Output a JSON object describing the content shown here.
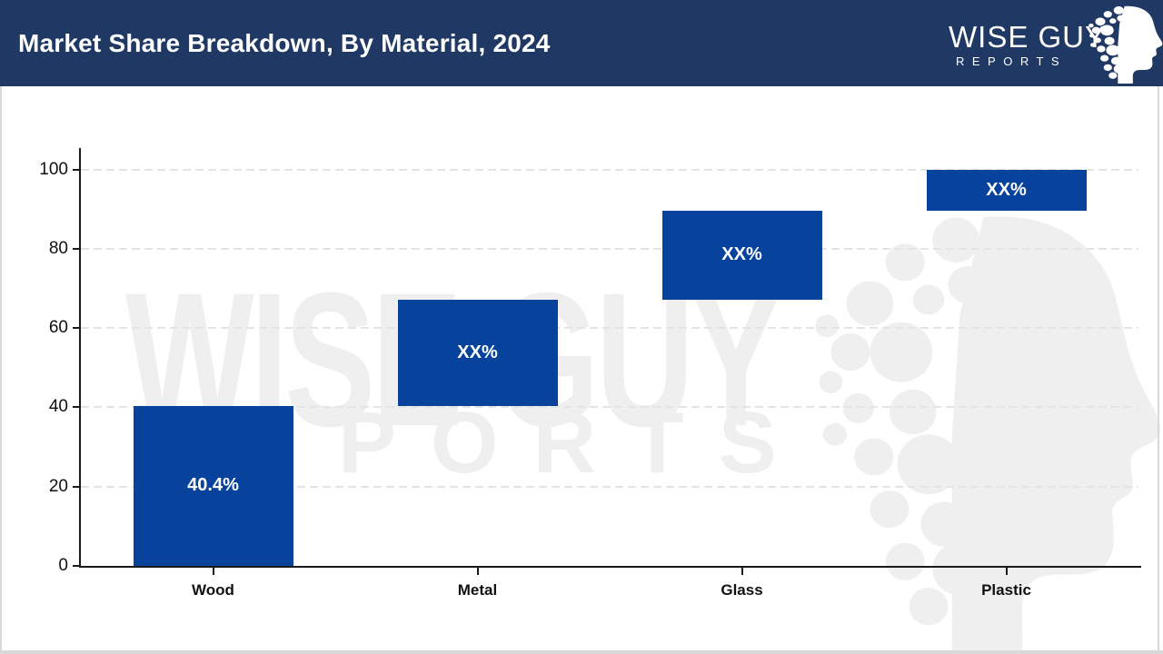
{
  "header": {
    "title": "Market Share Breakdown, By Material, 2024"
  },
  "logo": {
    "line1": "WISE GUY",
    "line2": "REPORTS"
  },
  "watermark": {
    "line1": "WISE GUY",
    "line2": "PORTS"
  },
  "colors": {
    "header_bg": "#1f3864",
    "title_text": "#ffffff",
    "bar_fill": "#07429d",
    "bar_label": "#ffffff",
    "axis_line": "#1a1a1a",
    "tick_label": "#111111",
    "category_label": "#111111",
    "gridline": "#e4e4e4",
    "watermark_gray": "#efefef",
    "page_border": "#d9d9d9"
  },
  "chart_data": {
    "type": "bar",
    "subtype": "stacked-waterfall",
    "title": "Market Share Breakdown, By Material, 2024",
    "categories": [
      "Wood",
      "Metal",
      "Glass",
      "Plastic"
    ],
    "segments": [
      {
        "category": "Wood",
        "start": 0,
        "end": 40.4,
        "label": "40.4%"
      },
      {
        "category": "Metal",
        "start": 40.4,
        "end": 67.2,
        "label": "XX%"
      },
      {
        "category": "Glass",
        "start": 67.2,
        "end": 89.6,
        "label": "XX%"
      },
      {
        "category": "Plastic",
        "start": 89.6,
        "end": 100,
        "label": "XX%"
      }
    ],
    "xlabel": "",
    "ylabel": "",
    "ylim": [
      0,
      100
    ],
    "yticks": [
      0,
      20,
      40,
      60,
      80,
      100
    ],
    "grid": "horizontal-dashed",
    "legend": false
  }
}
